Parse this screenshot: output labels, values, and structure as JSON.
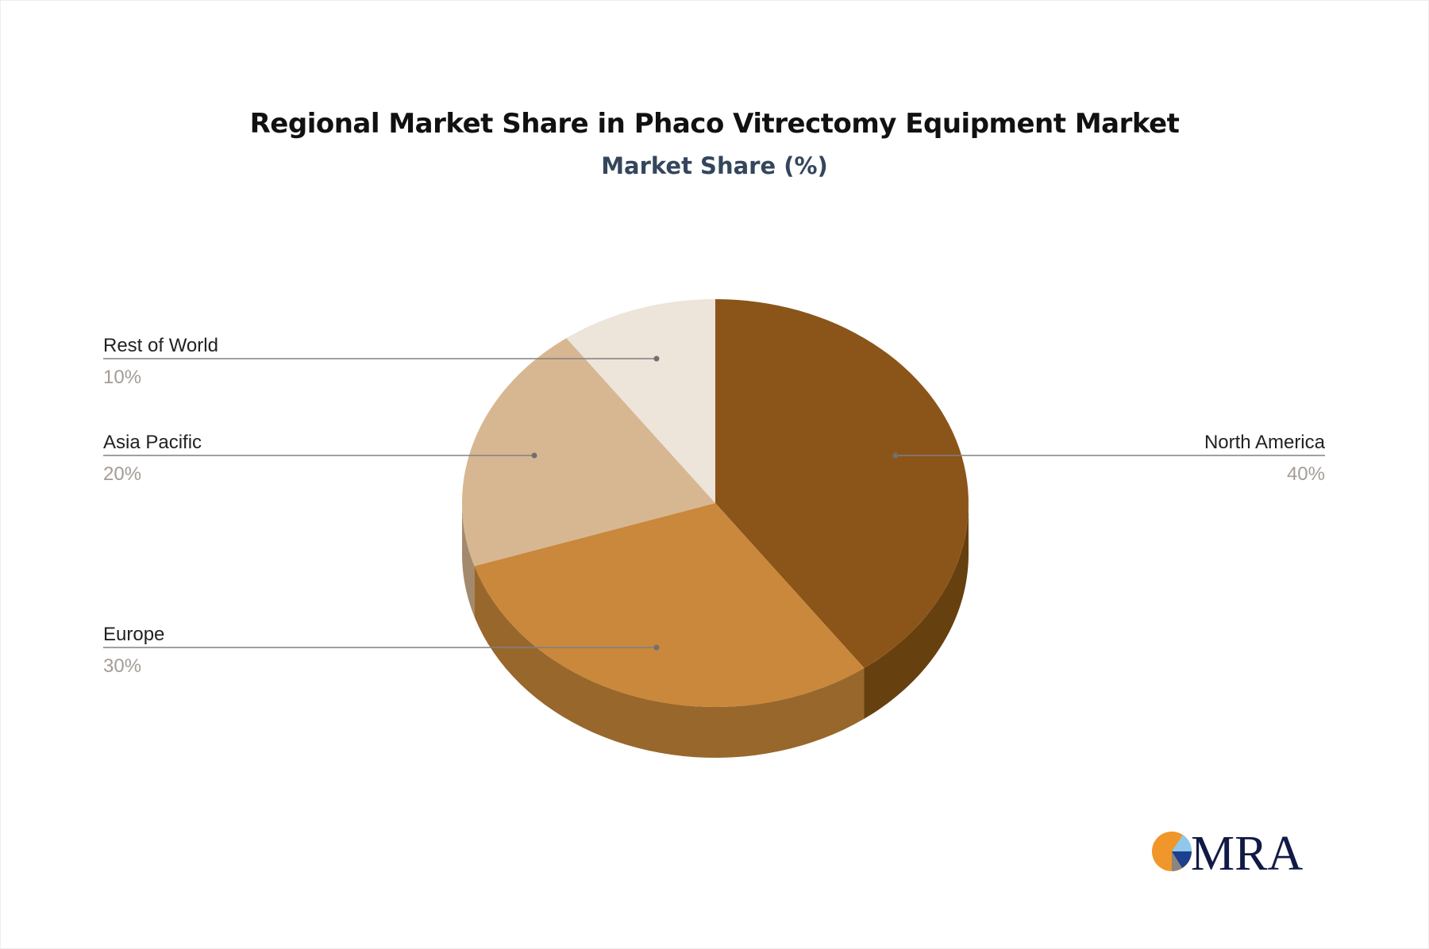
{
  "chart_data": {
    "type": "pie",
    "style": "3d",
    "title": "Regional Market Share in Phaco Vitrectomy Equipment Market",
    "subtitle": "Market Share (%)",
    "categories": [
      "North America",
      "Europe",
      "Asia Pacific",
      "Rest of World"
    ],
    "values": [
      40,
      30,
      20,
      10
    ],
    "labels": [
      "40%",
      "30%",
      "20%",
      "10%"
    ],
    "colors": [
      "#8b5519",
      "#c9883c",
      "#d7b791",
      "#ede4da"
    ],
    "side_colors": [
      "#67400f",
      "#98672c",
      "#a38a6c",
      "#c9bfb3"
    ],
    "label_placement": [
      "right",
      "left",
      "left",
      "left"
    ]
  },
  "logo": {
    "text": "MRA",
    "colors": [
      "#f0962a",
      "#8fc8ea",
      "#1c3f8f",
      "#8a8580",
      "#111a45"
    ]
  }
}
